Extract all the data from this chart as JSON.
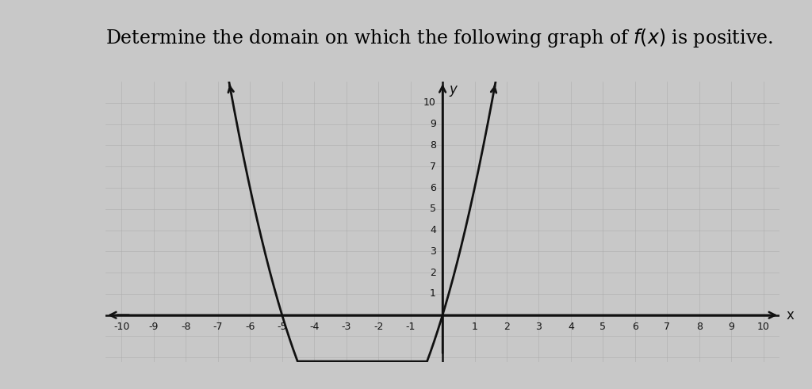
{
  "title_text": "Determine the domain on which the following graph of $f(x)$ is positive.",
  "title_fontsize": 17,
  "background_color": "#c8c8c8",
  "grid_color": "#aaaaaa",
  "axis_color": "#111111",
  "curve_color": "#111111",
  "curve_lw": 2.0,
  "xlim": [
    -10.5,
    10.5
  ],
  "ylim": [
    -2.2,
    11.0
  ],
  "xticks": [
    -10,
    -9,
    -8,
    -7,
    -6,
    -5,
    -4,
    -3,
    -2,
    -1,
    1,
    2,
    3,
    4,
    5,
    6,
    7,
    8,
    9,
    10
  ],
  "yticks": [
    1,
    2,
    3,
    4,
    5,
    6,
    7,
    8,
    9,
    10
  ],
  "xlabel": "x",
  "ylabel": "y",
  "a": 1,
  "b": 5,
  "c": 0,
  "x_start": -10.3,
  "x_end": 2.5,
  "tick_fontsize": 9
}
